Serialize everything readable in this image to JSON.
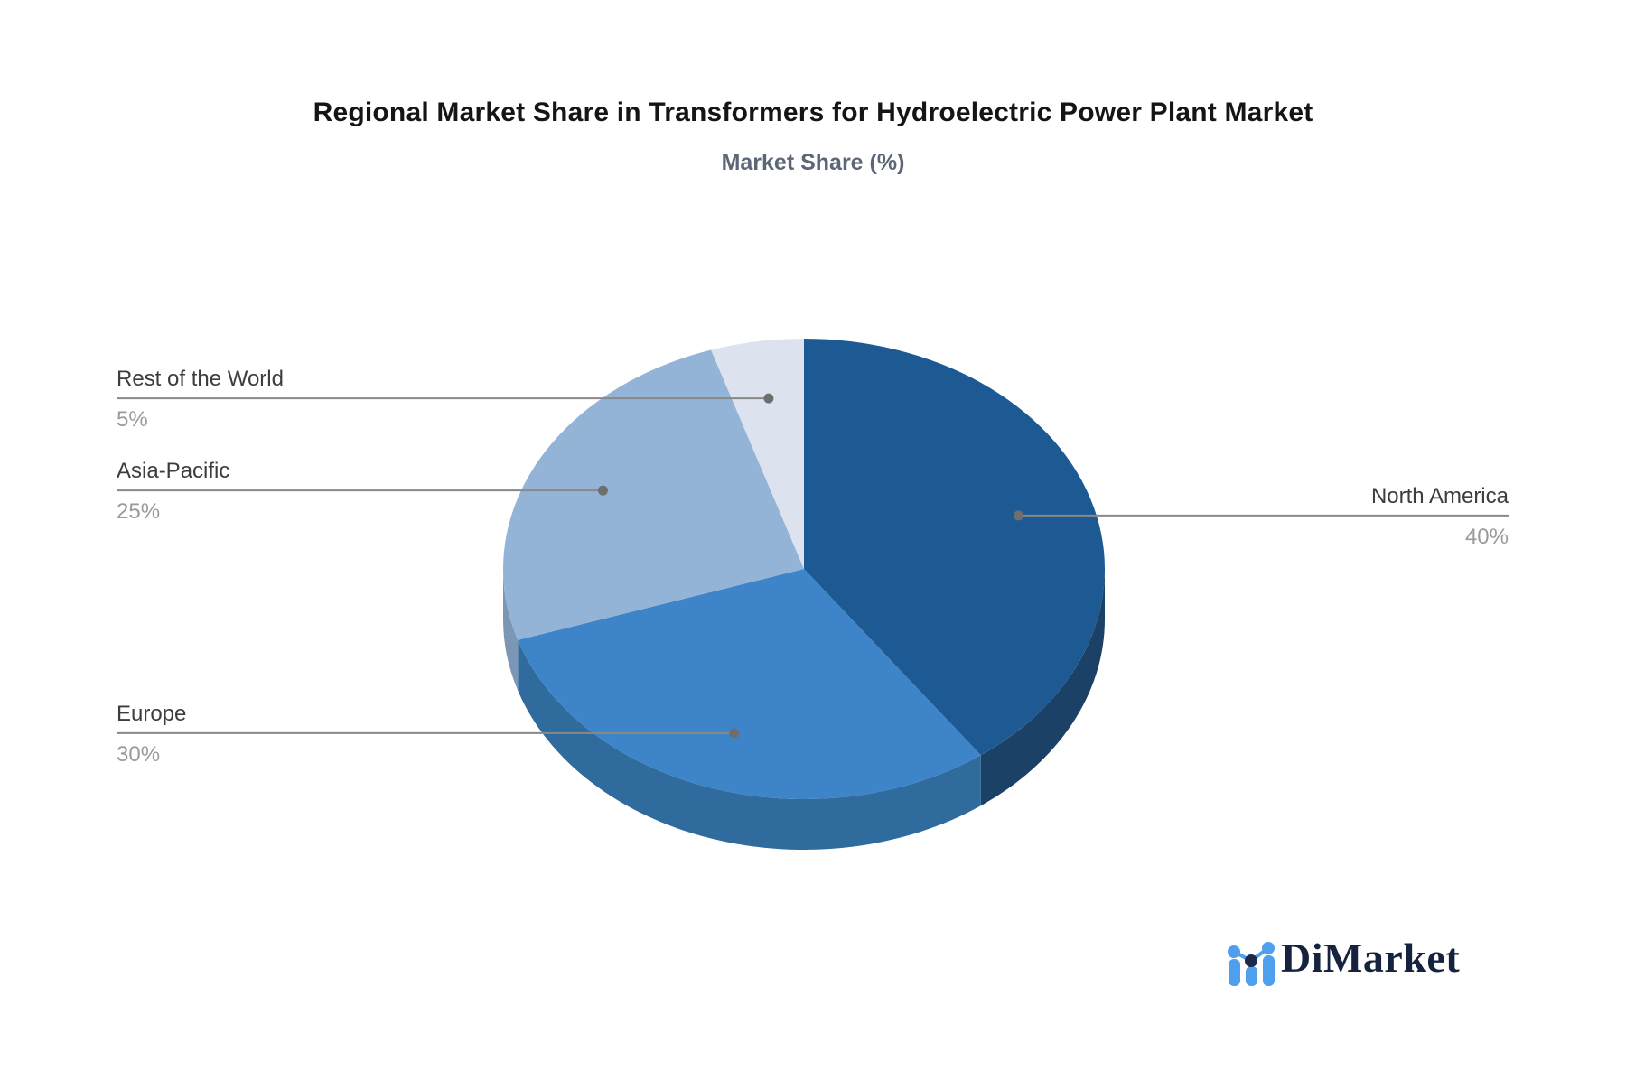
{
  "header": {
    "title": "Regional Market Share in Transformers for Hydroelectric Power Plant Market",
    "subtitle": "Market Share (%)"
  },
  "logo": {
    "text": "DiMarket",
    "icon": "bar-line-chart-icon",
    "icon_color": "#4f9fef",
    "text_color": "#16233f",
    "icon_accent_dot_color": "#1b2a4a"
  },
  "chart_data": {
    "type": "pie",
    "style": "3d",
    "unit": "%",
    "start_angle_clockwise_from_top_deg": 0,
    "legend_position": "callout-labels",
    "title": "Regional Market Share in Transformers for Hydroelectric Power Plant Market",
    "subtitle": "Market Share (%)",
    "slices": [
      {
        "label": "North America",
        "value": 40,
        "display_value": "40%",
        "color": "#1d5a93",
        "side_color": "#1b4166",
        "label_side": "right"
      },
      {
        "label": "Europe",
        "value": 30,
        "display_value": "30%",
        "color": "#3d85c8",
        "side_color": "#306b9e",
        "label_side": "left"
      },
      {
        "label": "Asia-Pacific",
        "value": 25,
        "display_value": "25%",
        "color": "#93b4d7",
        "side_color": "#7b97b5",
        "label_side": "left"
      },
      {
        "label": "Rest of the World",
        "value": 5,
        "display_value": "5%",
        "color": "#dce3ee",
        "side_color": "#b9c5d6",
        "label_side": "left"
      }
    ],
    "callout": {
      "line_color": "#888888",
      "dot_color": "#6e6e6e",
      "label_color": "#3d3d3d",
      "value_color": "#9a9a9a"
    }
  }
}
